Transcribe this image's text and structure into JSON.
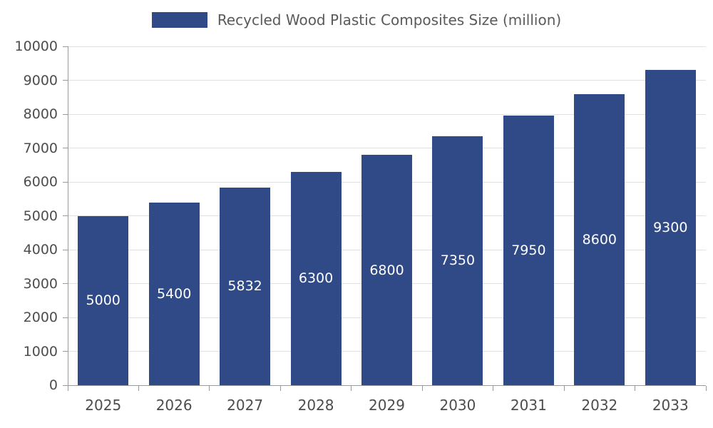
{
  "chart_data": {
    "type": "bar",
    "title": "Recycled Wood Plastic Composites Size (million)",
    "categories": [
      "2025",
      "2026",
      "2027",
      "2028",
      "2029",
      "2030",
      "2031",
      "2032",
      "2033"
    ],
    "values": [
      5000,
      5400,
      5832,
      6300,
      6800,
      7350,
      7950,
      8600,
      9300
    ],
    "xlabel": "",
    "ylabel": "",
    "ylim": [
      0,
      10000
    ],
    "yticks": [
      0,
      1000,
      2000,
      3000,
      4000,
      5000,
      6000,
      7000,
      8000,
      9000,
      10000
    ],
    "grid": true,
    "legend_position": "top",
    "bar_color": "#2f4a87",
    "value_label_color": "#ffffff",
    "axis_text_color": "#4d4d4d",
    "legend_text_color": "#5a5a5a",
    "grid_color": "#e0e0e0",
    "axis_line_color": "#999999"
  }
}
